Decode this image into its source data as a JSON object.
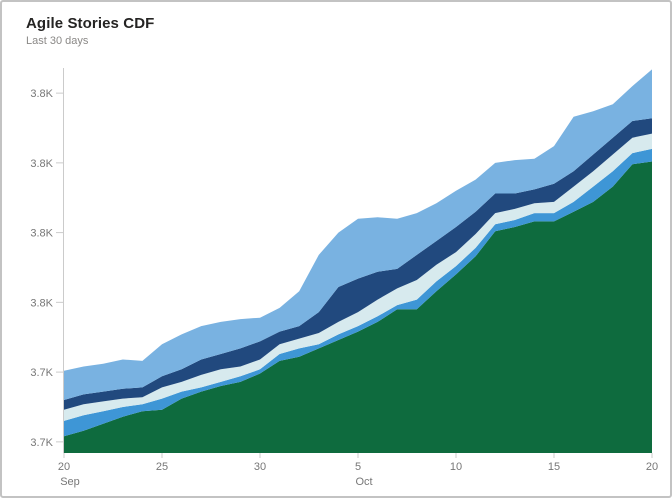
{
  "card": {
    "title": "Agile Stories CDF",
    "subtitle": "Last 30 days"
  },
  "colors": {
    "background": "#FFFFFF",
    "card_border": "#C3C3C3",
    "title_text": "#252423",
    "subtitle_text": "#8A8886",
    "axis_text": "#777777",
    "axis_line": "#CBCBCB"
  },
  "chart_data": {
    "type": "area",
    "stacked": true,
    "cumulative": true,
    "title": "Agile Stories CDF",
    "subtitle": "Last 30 days",
    "legend": "none",
    "grid": "off",
    "x_axis": {
      "unit": "day",
      "start": "Sep 20",
      "end": "Oct 20",
      "num_points": 31,
      "ticks": [
        {
          "day": 0,
          "label": "20",
          "month": "Sep"
        },
        {
          "day": 5,
          "label": "25"
        },
        {
          "day": 10,
          "label": "30"
        },
        {
          "day": 15,
          "label": "5",
          "month": "Oct"
        },
        {
          "day": 20,
          "label": "10"
        },
        {
          "day": 25,
          "label": "15"
        },
        {
          "day": 30,
          "label": "20"
        }
      ]
    },
    "y_axis": {
      "min": 3696,
      "max": 3834,
      "ticks": [
        {
          "value": 3700,
          "label": "3.7K"
        },
        {
          "value": 3725,
          "label": "3.7K"
        },
        {
          "value": 3750,
          "label": "3.8K"
        },
        {
          "value": 3775,
          "label": "3.8K"
        },
        {
          "value": 3800,
          "label": "3.8K"
        },
        {
          "value": 3825,
          "label": "3.8K"
        }
      ]
    },
    "series": [
      {
        "name": "series-1-dark-green",
        "color": "#0E6B3E",
        "cumulative_values": [
          3702,
          3704,
          3706.5,
          3709,
          3711,
          3711.5,
          3715.5,
          3718,
          3720,
          3721.5,
          3724.5,
          3729,
          3730.5,
          3733.5,
          3736.5,
          3739.5,
          3743,
          3747.5,
          3747.5,
          3754,
          3760,
          3766.5,
          3775.5,
          3777,
          3779,
          3779,
          3782.5,
          3786,
          3791.5,
          3799.5,
          3800.5
        ]
      },
      {
        "name": "series-2-medium-blue",
        "color": "#3E96D6",
        "cumulative_values": [
          3707.5,
          3709.5,
          3711,
          3712.5,
          3713.5,
          3715.5,
          3718,
          3719.5,
          3721.5,
          3723.5,
          3726,
          3731.5,
          3733.5,
          3735,
          3738.5,
          3741.5,
          3745,
          3749,
          3751,
          3757.5,
          3763,
          3769.5,
          3778,
          3779.5,
          3782,
          3782,
          3786,
          3791.5,
          3797,
          3803.5,
          3805
        ]
      },
      {
        "name": "series-3-pale-blue",
        "color": "#D7EAEE",
        "cumulative_values": [
          3711.5,
          3713.5,
          3714.5,
          3715.5,
          3716,
          3719.5,
          3721.5,
          3724,
          3726,
          3727,
          3729.5,
          3735,
          3737,
          3739,
          3743,
          3746.5,
          3751,
          3755,
          3758,
          3763.5,
          3768,
          3774.5,
          3782,
          3783.5,
          3785.5,
          3786,
          3791.5,
          3797,
          3803,
          3809,
          3810.5
        ]
      },
      {
        "name": "series-4-navy",
        "color": "#21497E",
        "cumulative_values": [
          3715,
          3717,
          3718,
          3719,
          3719.5,
          3723.5,
          3726,
          3729.5,
          3731.5,
          3733.5,
          3736,
          3739.5,
          3741.5,
          3746.5,
          3755.5,
          3758.5,
          3761,
          3762,
          3767,
          3772,
          3777,
          3782.5,
          3789,
          3789,
          3790.5,
          3792.5,
          3797,
          3803,
          3809,
          3815,
          3816
        ]
      },
      {
        "name": "series-5-light-blue",
        "color": "#79B2E1",
        "cumulative_values": [
          3725.5,
          3727,
          3728,
          3729.5,
          3729,
          3735,
          3738.5,
          3741.5,
          3743,
          3744,
          3744.5,
          3748,
          3754,
          3767,
          3775,
          3780,
          3780.5,
          3780,
          3782,
          3785.5,
          3790,
          3794,
          3800,
          3801,
          3801.5,
          3806,
          3816.5,
          3818.5,
          3821,
          3827.5,
          3833.5
        ]
      }
    ]
  }
}
